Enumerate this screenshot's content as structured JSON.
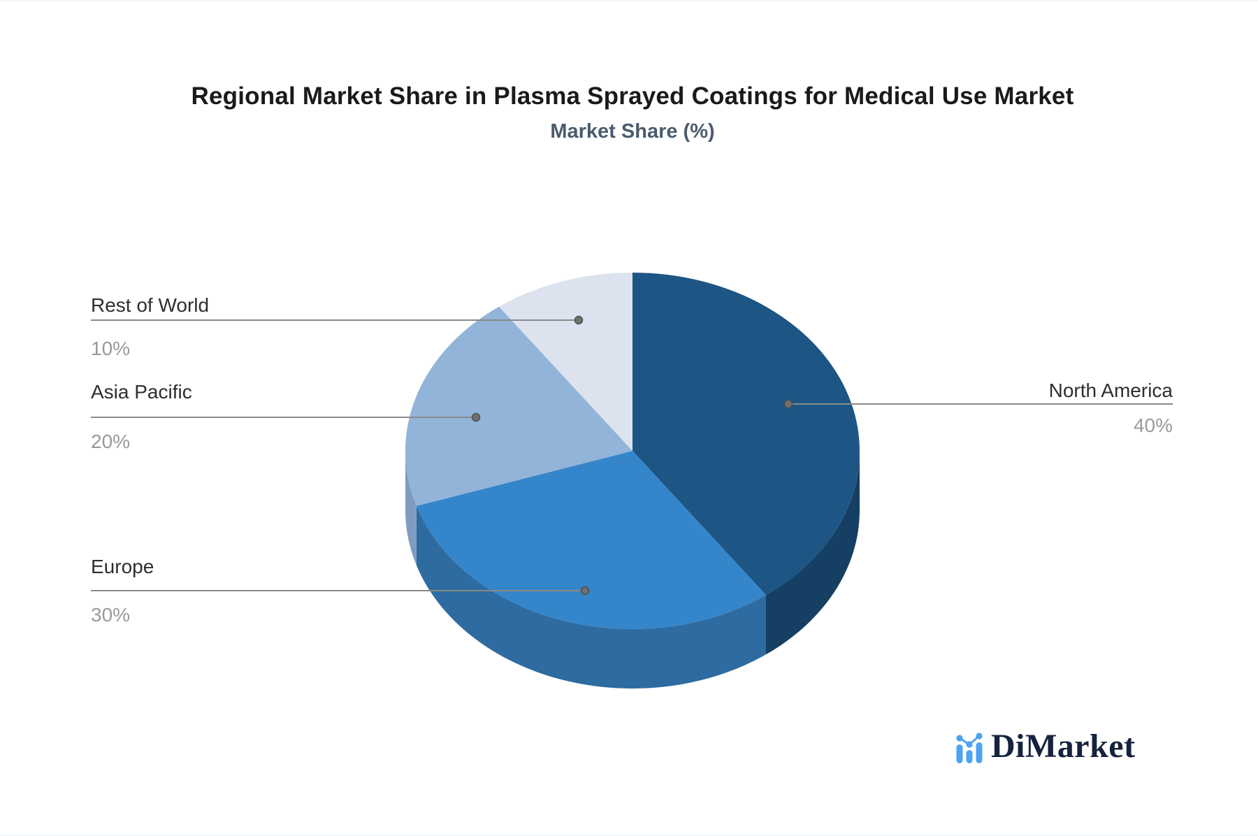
{
  "header": {
    "title": "Regional Market Share in Plasma Sprayed Coatings for Medical Use Market",
    "subtitle": "Market Share (%)"
  },
  "chart_data": {
    "type": "pie",
    "style": "3d",
    "title": "Regional Market Share in Plasma Sprayed Coatings for Medical Use Market",
    "subtitle": "Market Share (%)",
    "unit": "%",
    "start_angle_deg": 0,
    "direction": "clockwise",
    "categories": [
      "North America",
      "Europe",
      "Asia Pacific",
      "Rest of World"
    ],
    "values": [
      40,
      30,
      20,
      10
    ],
    "series": [
      {
        "name": "North America",
        "value": 40,
        "pct_label": "40%",
        "color": "#1d5585",
        "side_color": "#153f63"
      },
      {
        "name": "Europe",
        "value": 30,
        "pct_label": "30%",
        "color": "#3585ca",
        "side_color": "#2d6ba1"
      },
      {
        "name": "Asia Pacific",
        "value": 20,
        "pct_label": "20%",
        "color": "#92b4d8",
        "side_color": "#7e9cc0"
      },
      {
        "name": "Rest of World",
        "value": 10,
        "pct_label": "10%",
        "color": "#dce3ef",
        "side_color": "#c3cee1"
      }
    ],
    "legend": "callout-labels"
  },
  "callouts": [
    {
      "label": "Rest of World",
      "value_label": "10%"
    },
    {
      "label": "Asia Pacific",
      "value_label": "20%"
    },
    {
      "label": "Europe",
      "value_label": "30%"
    },
    {
      "label": "North America",
      "value_label": "40%"
    }
  ],
  "logo": {
    "text": "DiMarket"
  },
  "colors": {
    "title": "#1a1a1a",
    "subtitle": "#4a5b6e",
    "label_text": "#2e2e2e",
    "pct_text": "#9a9a9a",
    "leader_line": "#8a8a8a",
    "leader_dot": "#707070",
    "logo_blue": "#4ba3f2",
    "logo_navy": "#16233f"
  }
}
